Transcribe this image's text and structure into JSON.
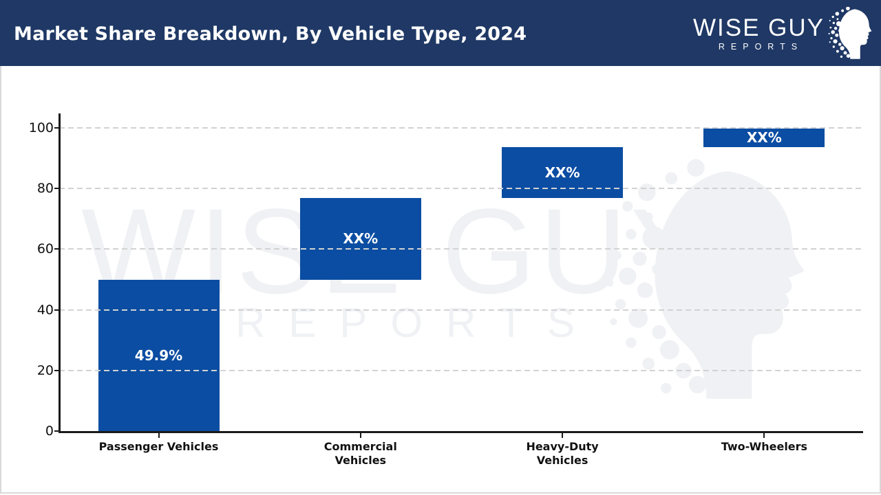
{
  "header": {
    "title": "Market Share Breakdown, By Vehicle Type, 2024",
    "brand": {
      "word": "WISE GUY",
      "sub": "REPORTS"
    }
  },
  "watermark": {
    "word": "WISE GUY",
    "sub": "REPORTS"
  },
  "colors": {
    "header_bg": "#1F3865",
    "bar_blue": "#0B4DA2",
    "grid_gray": "#D2D2D2",
    "axis_black": "#1A1A1A",
    "watermark_gray": "#F0F1F4",
    "bar_label_white": "#FFFFFF"
  },
  "chart_data": {
    "type": "bar",
    "subtype": "waterfall",
    "title": "Market Share Breakdown, By Vehicle Type, 2024",
    "unit": "%",
    "categories": [
      "Passenger Vehicles",
      "Commercial\nVehicles",
      "Heavy-Duty\nVehicles",
      "Two-Wheelers"
    ],
    "segments": [
      {
        "category": "Passenger Vehicles",
        "start": 0,
        "end": 49.9,
        "label": "49.9%"
      },
      {
        "category": "Commercial Vehicles",
        "start": 49.9,
        "end": 76.9,
        "label": "XX%"
      },
      {
        "category": "Heavy-Duty Vehicles",
        "start": 76.9,
        "end": 93.7,
        "label": "XX%"
      },
      {
        "category": "Two-Wheelers",
        "start": 93.7,
        "end": 99.8,
        "label": "XX%"
      }
    ],
    "xlabel": "",
    "ylabel": "",
    "ylim": [
      0,
      105
    ],
    "yticks": [
      0,
      20,
      40,
      60,
      80,
      100
    ],
    "grid": "horizontal-dashed",
    "legend": "none"
  }
}
